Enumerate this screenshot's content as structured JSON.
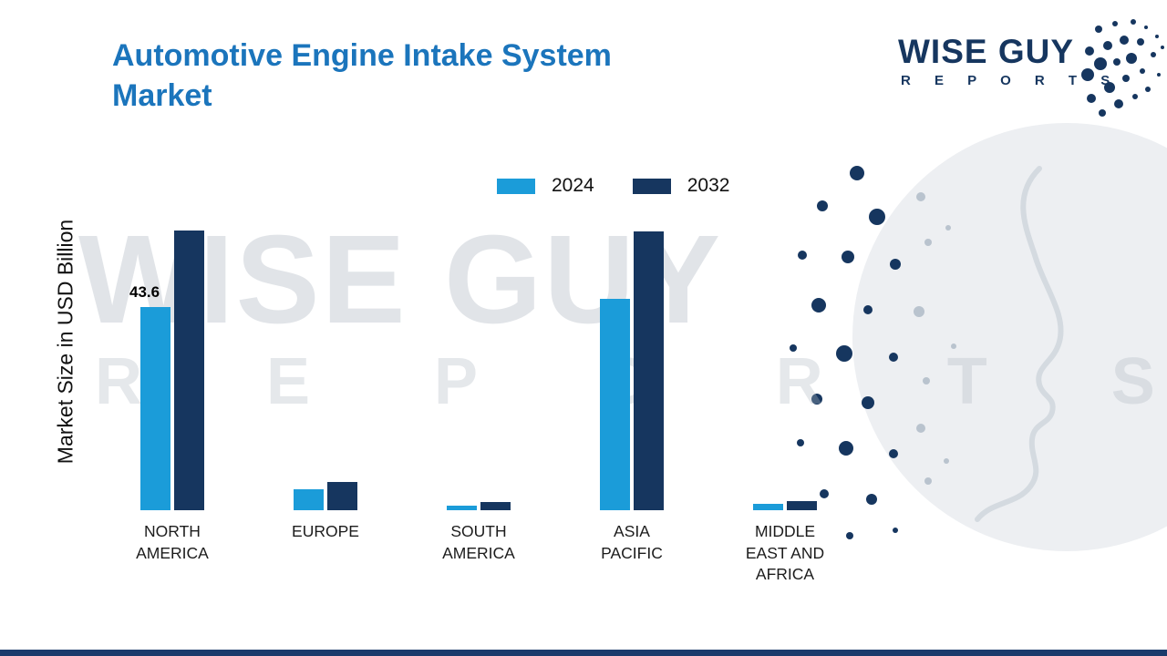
{
  "page": {
    "background": "#ffffff",
    "bottom_bar_color": "#1b3a6b"
  },
  "header": {
    "title_line1": "Automotive Engine Intake System",
    "title_line2": "Market",
    "title_color": "#1b75bc"
  },
  "logo": {
    "line1": "WISE GUY",
    "line2": "R E P O R T S",
    "color": "#16365f"
  },
  "watermark": {
    "line1": "WISE GUY",
    "line2": "R E P O R T S"
  },
  "chart_data": {
    "type": "bar",
    "title": "Automotive Engine Intake System Market",
    "xlabel": "",
    "ylabel": "Market Size in USD Billion",
    "categories": [
      "NORTH AMERICA",
      "EUROPE",
      "SOUTH AMERICA",
      "ASIA PACIFIC",
      "MIDDLE EAST AND AFRICA"
    ],
    "series": [
      {
        "name": "2024",
        "color": "#1b9cd9",
        "values": [
          43.6,
          4.5,
          1.0,
          45.5,
          1.3
        ]
      },
      {
        "name": "2032",
        "color": "#16365f",
        "values": [
          60.2,
          6.0,
          1.7,
          60.0,
          1.9
        ]
      }
    ],
    "ylim": [
      0,
      65
    ],
    "grid": false,
    "legend_position": "top",
    "annotations": [
      {
        "series": "2024",
        "category_index": 0,
        "text": "43.6"
      }
    ]
  }
}
